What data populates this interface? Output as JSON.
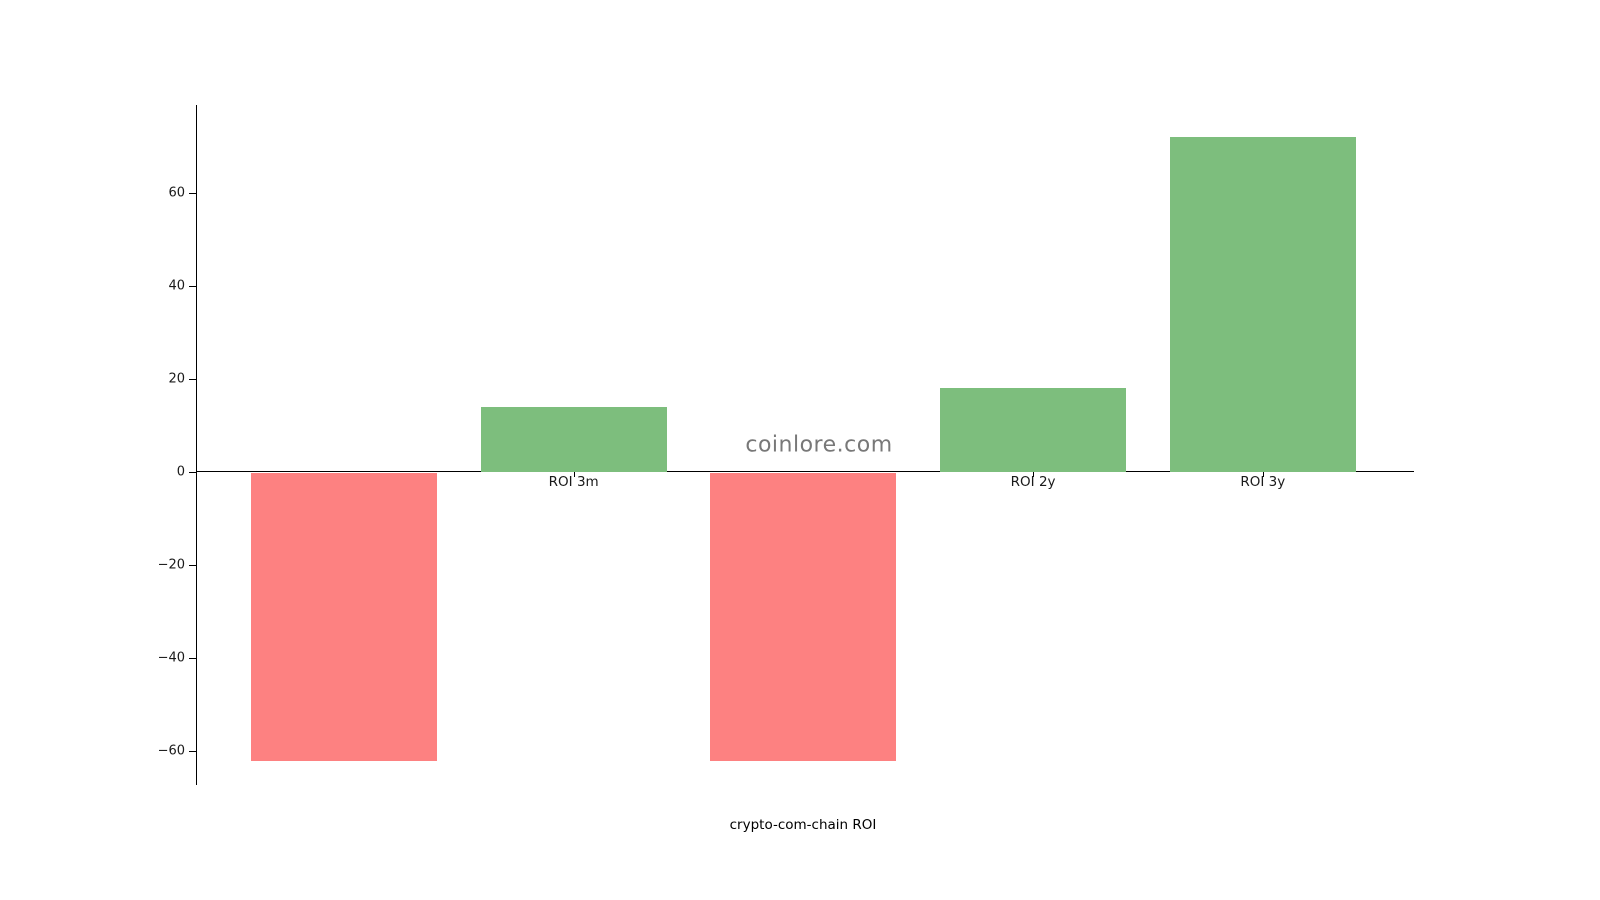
{
  "page": {
    "background": "#ffffff"
  },
  "watermark": {
    "text": "coinlore.com",
    "color": "#787878"
  },
  "chart_data": {
    "type": "bar",
    "title": "crypto-com-chain ROI",
    "watermark": "coinlore.com",
    "categories": [
      "",
      "ROI 3m",
      "",
      "ROI 2y",
      "ROI 3y"
    ],
    "values": [
      -62,
      14,
      -62,
      18,
      72
    ],
    "bar_colors": [
      "#fd8181",
      "#7dbe7d",
      "#fd8181",
      "#7dbe7d",
      "#7dbe7d"
    ],
    "positive_color": "#7dbe7d",
    "negative_color": "#fd8181",
    "yticks": [
      60,
      40,
      20,
      0,
      -20,
      -40,
      -60
    ],
    "ytick_labels": [
      "60",
      "40",
      "20",
      "0",
      "−20",
      "−40",
      "−60"
    ],
    "ylim": [
      -70,
      79
    ],
    "xlabel": "",
    "ylabel": "",
    "grid": false,
    "legend_position": "none",
    "notes": "x tick labels of negative (red) bars are hidden behind the bars; only positive-bar labels are visible"
  }
}
